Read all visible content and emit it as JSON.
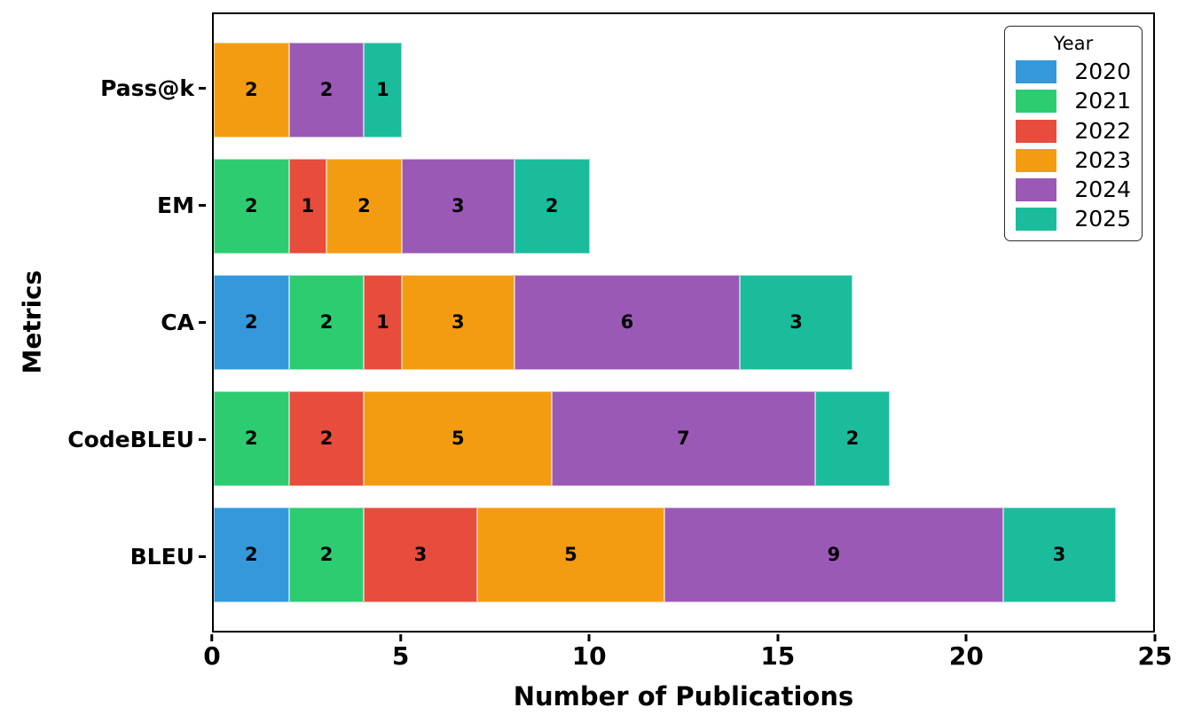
{
  "chart_data": {
    "type": "bar",
    "orientation": "horizontal",
    "stacked": true,
    "title": "",
    "xlabel": "Number of Publications",
    "ylabel": "Metrics",
    "categories": [
      "Pass@k",
      "EM",
      "CA",
      "CodeBLEU",
      "BLEU"
    ],
    "series": [
      {
        "name": "2020",
        "color": "#3498db",
        "values": [
          0,
          0,
          2,
          0,
          2
        ]
      },
      {
        "name": "2021",
        "color": "#2ecc71",
        "values": [
          0,
          2,
          2,
          2,
          2
        ]
      },
      {
        "name": "2022",
        "color": "#e74c3c",
        "values": [
          0,
          1,
          1,
          2,
          3
        ]
      },
      {
        "name": "2023",
        "color": "#f39c12",
        "values": [
          2,
          2,
          3,
          5,
          5
        ]
      },
      {
        "name": "2024",
        "color": "#9b59b6",
        "values": [
          2,
          3,
          6,
          7,
          9
        ]
      },
      {
        "name": "2025",
        "color": "#1abc9c",
        "values": [
          1,
          2,
          3,
          2,
          3
        ]
      }
    ],
    "totals": [
      5,
      10,
      17,
      18,
      24
    ],
    "xlim": [
      0,
      25
    ],
    "xticks": [
      0,
      5,
      10,
      15,
      20,
      25
    ],
    "legend_title": "Year",
    "legend_position": "upper right",
    "bar_label_color": "#000000",
    "grid": false
  }
}
